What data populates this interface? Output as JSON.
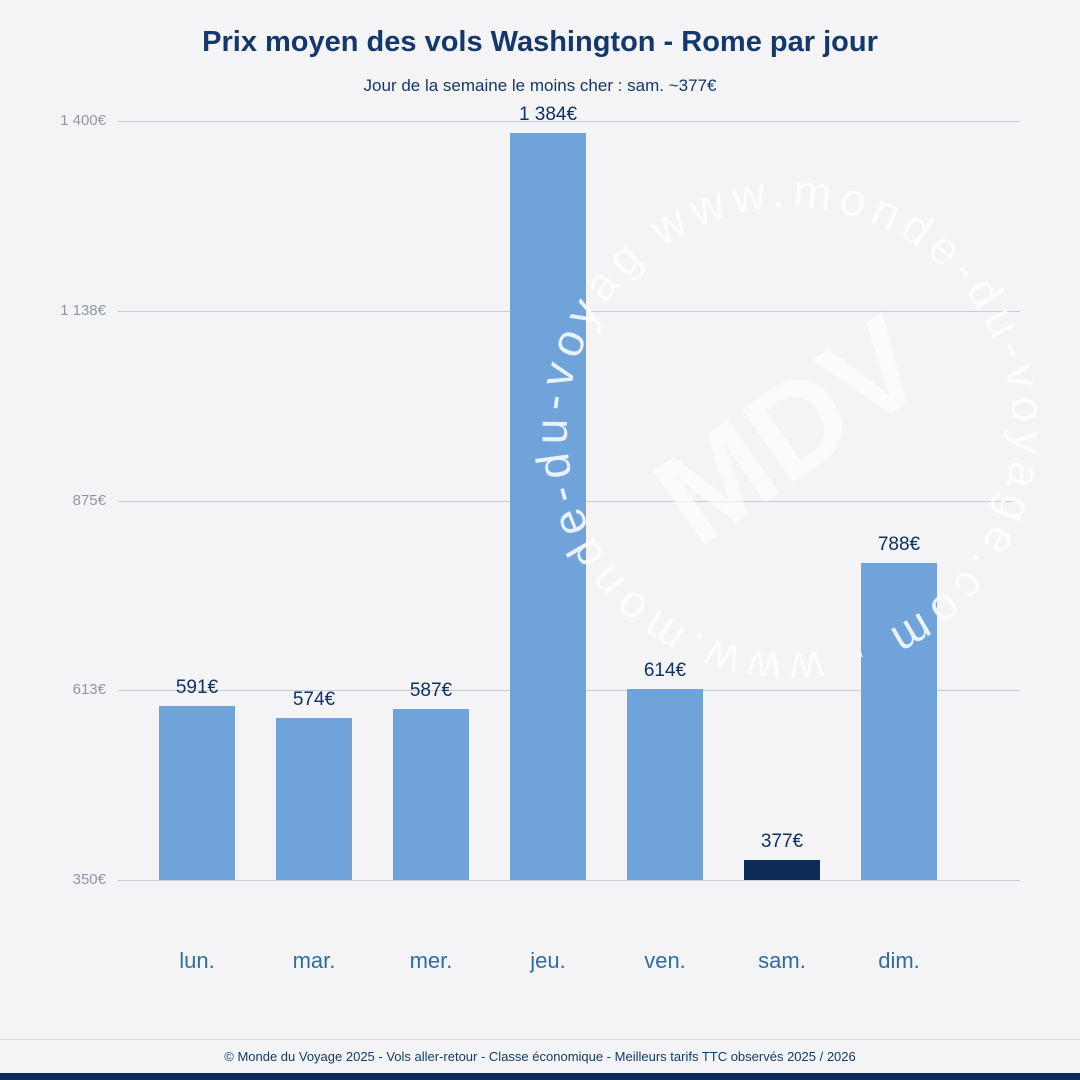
{
  "header": {
    "title": "Prix moyen des vols Washington - Rome par jour",
    "subtitle": "Jour de la semaine le moins cher : sam. ~377€"
  },
  "chart_data": {
    "type": "bar",
    "title": "Prix moyen des vols Washington - Rome par jour",
    "categories": [
      "lun.",
      "mar.",
      "mer.",
      "jeu.",
      "ven.",
      "sam.",
      "dim."
    ],
    "values": [
      591,
      574,
      587,
      1384,
      614,
      377,
      788
    ],
    "value_labels": [
      "591€",
      "574€",
      "587€",
      "1 384€",
      "614€",
      "377€",
      "788€"
    ],
    "highlight_index": 5,
    "ylim": [
      350,
      1400
    ],
    "y_ticks": [
      {
        "value": 1400,
        "label": "1 400€"
      },
      {
        "value": 1137.5,
        "label": "1 138€"
      },
      {
        "value": 875,
        "label": "875€"
      },
      {
        "value": 612.5,
        "label": "613€"
      },
      {
        "value": 350,
        "label": "350€"
      }
    ],
    "grid": true,
    "legend": "none",
    "bar_color": "#6fa3d9",
    "highlight_color": "#0d2b57"
  },
  "watermark": {
    "circle_text": "www.monde-du-voyage.com · www.monde-du-voyage.com ·",
    "center_text": "MDV"
  },
  "footer": {
    "text": "© Monde du Voyage 2025 - Vols aller-retour - Classe économique - Meilleurs tarifs TTC observés 2025 / 2026"
  }
}
